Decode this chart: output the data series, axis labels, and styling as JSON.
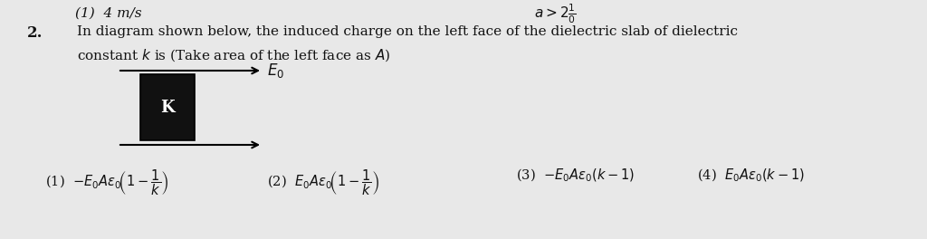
{
  "background_color": "#e8e8e8",
  "text_color": "#111111",
  "question_number": "2.",
  "main_text_line1": "In diagram shown below, the induced charge on the left face of the dielectric slab of dielectric",
  "main_text_line2": "constant $k$ is (Take area of the left face as $A$)",
  "top_left_text1": "(1)  4 m/s",
  "top_annotation": "$a > 2\\frac{1}{0}$",
  "E0_label": "$E_0$",
  "K_label": "K",
  "options": [
    "(1)  $-E_0 A\\varepsilon_0\\!\\left(1-\\dfrac{1}{k}\\right)$",
    "(2)  $E_0 A\\varepsilon_0\\!\\left(1-\\dfrac{1}{k}\\right)$",
    "(3)  $-E_0 A\\varepsilon_0(k-1)$",
    "(4)  $E_0 A\\varepsilon_0(k-1)$"
  ],
  "slab_color": "#111111",
  "fs_main": 11,
  "fs_opt": 10.5
}
